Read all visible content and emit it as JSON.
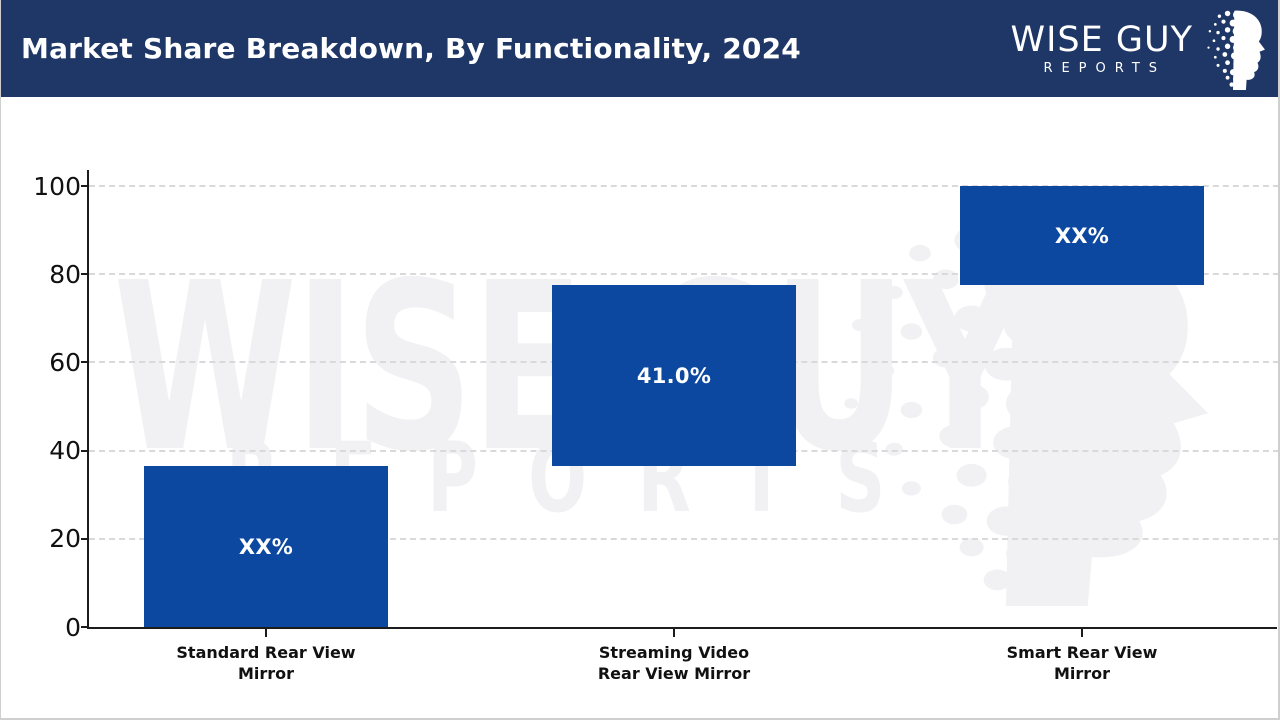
{
  "header": {
    "title": "Market Share Breakdown, By Functionality, 2024",
    "logo": {
      "wordmark": "WISE GUY",
      "subtitle": "REPORTS"
    }
  },
  "watermark": {
    "wordmark": "WISE GUY",
    "subtitle": "REPORTS"
  },
  "colors": {
    "header_bg": "#1f3766",
    "bar_fill": "#0c48a0",
    "bar_label": "#ffffff",
    "grid_line": "#d9d9d9",
    "axis_line": "#1c1c1c",
    "tick_label": "#111111",
    "watermark": "#f1f1f4"
  },
  "chart_data": {
    "type": "bar",
    "subtype": "floating-waterfall",
    "title": "Market Share Breakdown, By Functionality, 2024",
    "categories": [
      "Standard Rear View\nMirror",
      "Streaming Video\nRear View Mirror",
      "Smart Rear View\nMirror"
    ],
    "series": [
      {
        "name": "Market share (%)",
        "segments": [
          {
            "category": "Standard Rear View Mirror",
            "base": 0,
            "top": 36.5,
            "value_label": "XX%"
          },
          {
            "category": "Streaming Video Rear View Mirror",
            "base": 36.5,
            "top": 77.5,
            "value_label": "41.0%"
          },
          {
            "category": "Smart Rear View Mirror",
            "base": 77.5,
            "top": 100,
            "value_label": "XX%"
          }
        ]
      }
    ],
    "yticks": [
      0,
      20,
      40,
      60,
      80,
      100
    ],
    "ylim": [
      0,
      103.6
    ],
    "xlabel": "",
    "ylabel": "",
    "grid": "horizontal-dashed",
    "legend": "none"
  }
}
